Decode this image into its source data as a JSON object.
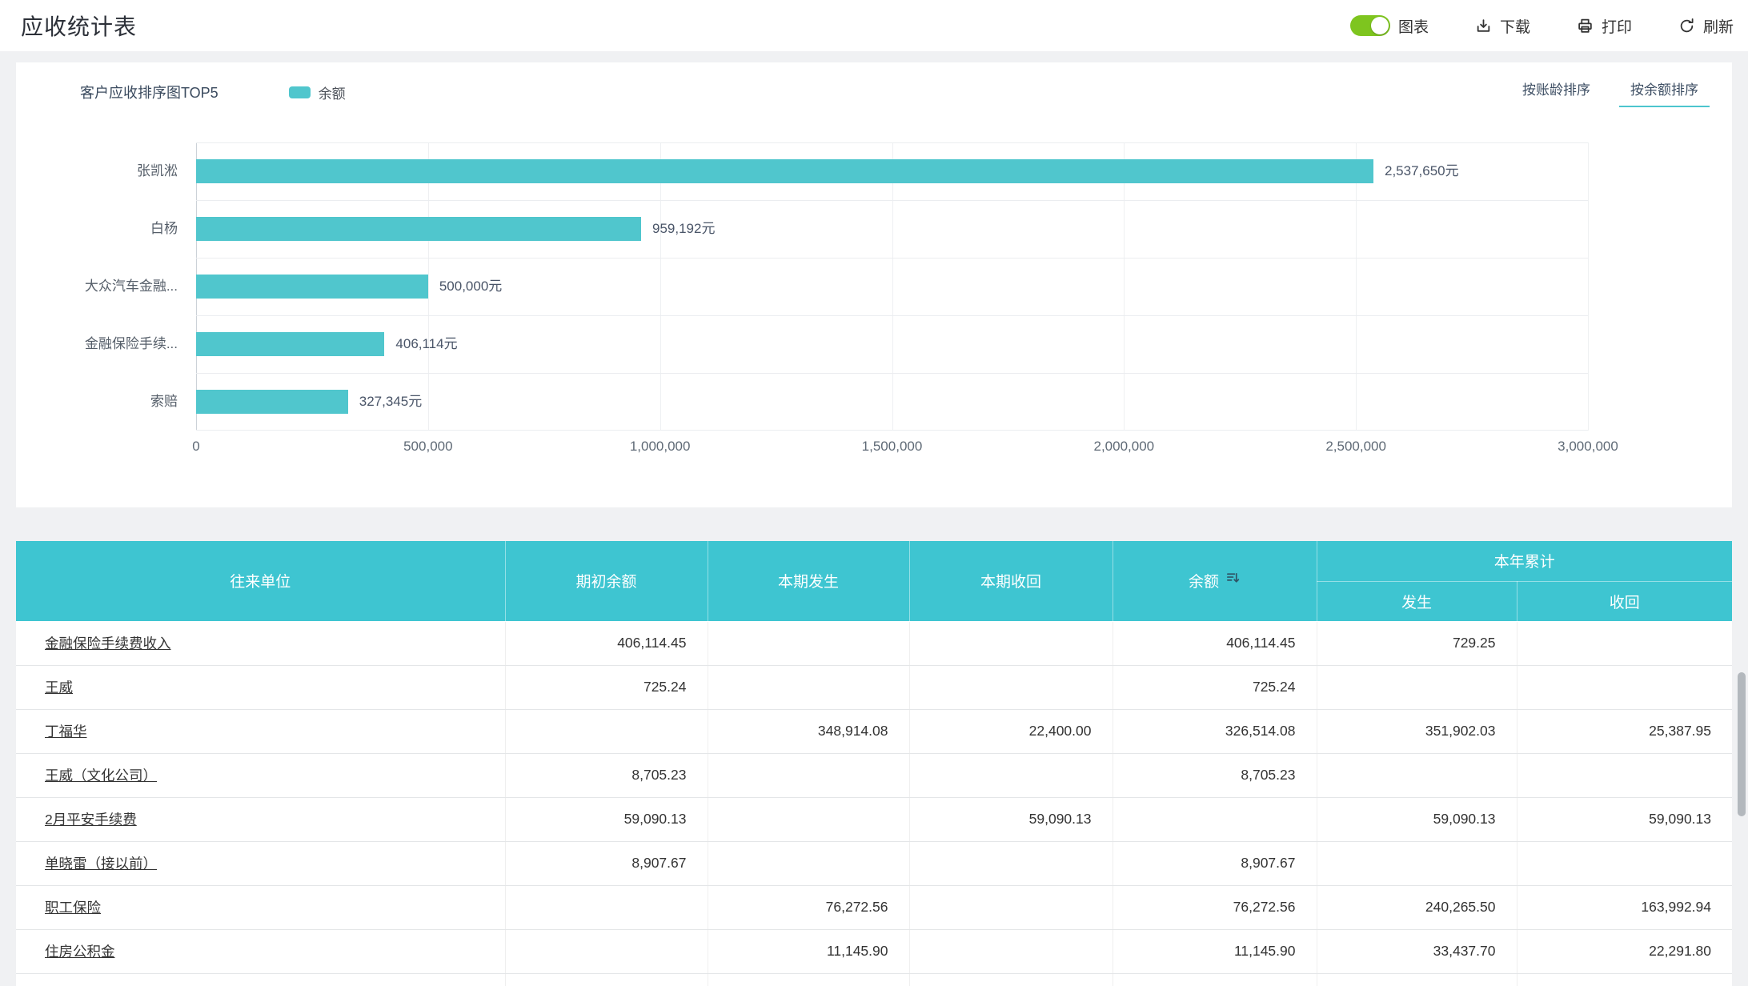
{
  "page": {
    "title": "应收统计表"
  },
  "toolbar": {
    "chart_toggle_label": "图表",
    "download_label": "下载",
    "print_label": "打印",
    "refresh_label": "刷新",
    "toggle_on": true
  },
  "colors": {
    "teal_header": "#3ec5d1",
    "bar": "#50c6cd",
    "toggle_green": "#7ec51f",
    "tab_underline": "#4dc5ce",
    "sort_icon": "#2f5566"
  },
  "chart": {
    "title": "客户应收排序图TOP5",
    "legend_label": "余额",
    "sort_tab_age": "按账龄排序",
    "sort_tab_balance": "按余额排序",
    "active_tab": "按余额排序"
  },
  "chart_data": {
    "type": "bar",
    "orientation": "horizontal",
    "title": "客户应收排序图TOP5",
    "series_name": "余额",
    "categories": [
      "张凯淞",
      "白杨",
      "大众汽车金融...",
      "金融保险手续...",
      "索赔"
    ],
    "values": [
      2537650,
      959192,
      500000,
      406114,
      327345
    ],
    "value_labels": [
      "2,537,650元",
      "959,192元",
      "500,000元",
      "406,114元",
      "327,345元"
    ],
    "xlim": [
      0,
      3000000
    ],
    "x_ticks": [
      "0",
      "500,000",
      "1,000,000",
      "1,500,000",
      "2,000,000",
      "2,500,000",
      "3,000,000"
    ],
    "grid": true,
    "legend_position": "top",
    "bar_color": "#50c6cd"
  },
  "table": {
    "header": {
      "col_unit": "往来单位",
      "col_opening": "期初余额",
      "col_current_incurred": "本期发生",
      "col_current_received": "本期收回",
      "col_balance": "余额",
      "col_ytd": "本年累计",
      "col_ytd_incurred": "发生",
      "col_ytd_received": "收回"
    },
    "rows": [
      [
        "金融保险手续费收入",
        "406,114.45",
        "",
        "",
        "406,114.45",
        "729.25",
        ""
      ],
      [
        "王威",
        "725.24",
        "",
        "",
        "725.24",
        "",
        ""
      ],
      [
        "丁福华",
        "",
        "348,914.08",
        "22,400.00",
        "326,514.08",
        "351,902.03",
        "25,387.95"
      ],
      [
        "王威（文化公司）",
        "8,705.23",
        "",
        "",
        "8,705.23",
        "",
        ""
      ],
      [
        "2月平安手续费",
        "59,090.13",
        "",
        "59,090.13",
        "",
        "59,090.13",
        "59,090.13"
      ],
      [
        "单晓雷（接以前）",
        "8,907.67",
        "",
        "",
        "8,907.67",
        "",
        ""
      ],
      [
        "职工保险",
        "",
        "76,272.56",
        "",
        "76,272.56",
        "240,265.50",
        "163,992.94"
      ],
      [
        "住房公积金",
        "",
        "11,145.90",
        "",
        "11,145.90",
        "33,437.70",
        "22,291.80"
      ]
    ]
  }
}
